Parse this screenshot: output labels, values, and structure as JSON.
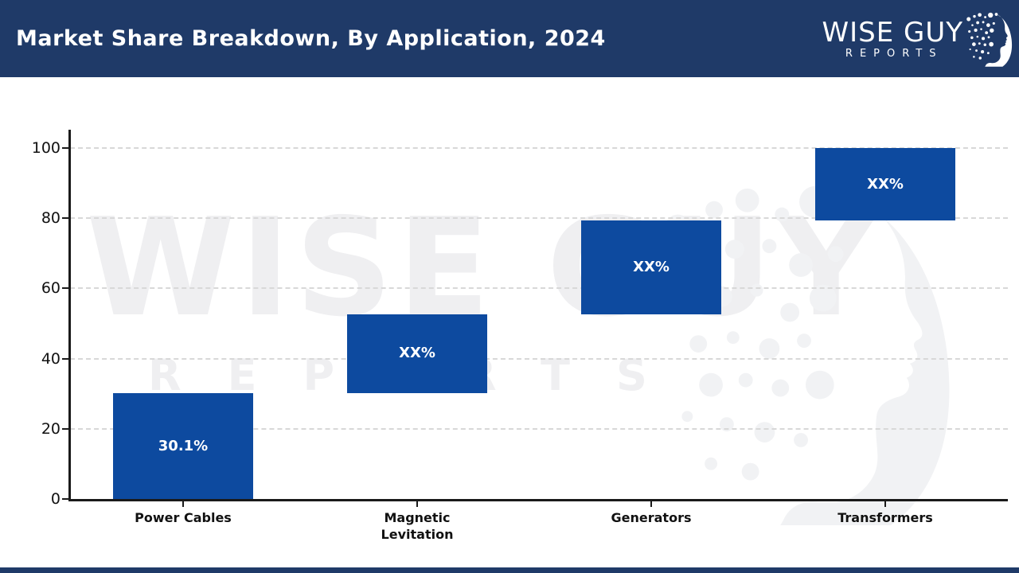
{
  "header": {
    "title": "Market Share Breakdown, By Application, 2024",
    "logo": {
      "line1": "WISE GUY",
      "line2": "REPORTS"
    }
  },
  "watermark": {
    "line1": "WISE GUY",
    "line2": "REPORTS"
  },
  "colors": {
    "header_navy": "#1f3a68",
    "bar_blue": "#0d4a9f",
    "gridline_gray": "#d8d8d8",
    "axis_black": "#1a1a1a",
    "watermark_gray": "#efeff1",
    "bar_label_white": "#ffffff"
  },
  "chart_data": {
    "type": "bar",
    "subtype": "waterfall",
    "title": "Market Share Breakdown, By Application, 2024",
    "categories": [
      "Power Cables",
      "Magnetic Levitation",
      "Generators",
      "Transformers"
    ],
    "segments": [
      {
        "category": "Power Cables",
        "start": 0,
        "end": 30.1,
        "label": "30.1%"
      },
      {
        "category": "Magnetic Levitation",
        "start": 30.1,
        "end": 52.7,
        "label": "XX%"
      },
      {
        "category": "Generators",
        "start": 52.7,
        "end": 79.3,
        "label": "XX%"
      },
      {
        "category": "Transformers",
        "start": 79.3,
        "end": 100,
        "label": "XX%"
      }
    ],
    "ylim": [
      0,
      100
    ],
    "yticks": [
      0,
      20,
      40,
      60,
      80,
      100
    ],
    "xlabel": "",
    "ylabel": "",
    "grid": "horizontal-dashed",
    "legend": "none",
    "bar_color": "#0d4a9f",
    "bar_label_color": "#ffffff"
  }
}
